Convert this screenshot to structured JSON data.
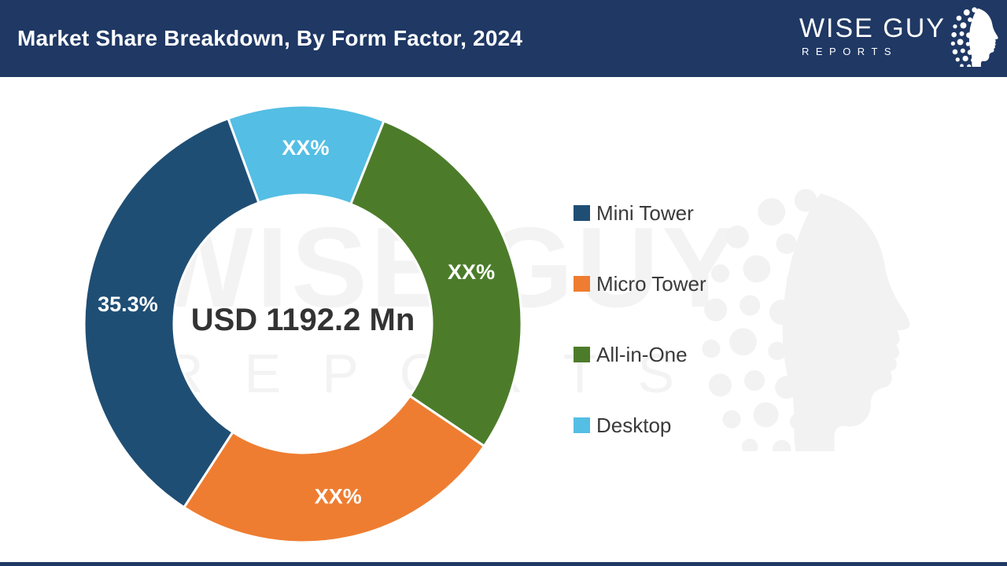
{
  "header": {
    "title": "Market Share Breakdown, By Form Factor, 2024",
    "logo": {
      "line1": "WISE GUY",
      "line2": "REPORTS"
    }
  },
  "watermark": {
    "big_text": "WISE GUY",
    "letters_text": "REPORTS"
  },
  "chart_data": {
    "type": "donut",
    "title": "Market Share Breakdown, By Form Factor, 2024",
    "center_label": "USD 1192.2 Mn",
    "legend_position": "right",
    "grid": false,
    "start_angle_deg": -20,
    "outer_radius": 278,
    "inner_radius": 164,
    "label_radius": 224,
    "draw_order": [
      3,
      2,
      1,
      0
    ],
    "segments": [
      {
        "name": "Mini Tower",
        "value_label": "35.3%",
        "percent": 35.3,
        "color": "#1F4E74"
      },
      {
        "name": "Micro Tower",
        "value_label": "XX%",
        "percent": 24.7,
        "color": "#EE7D31"
      },
      {
        "name": "All-in-One",
        "value_label": "XX%",
        "percent": 28.4,
        "color": "#4C7C2A"
      },
      {
        "name": "Desktop",
        "value_label": "XX%",
        "percent": 11.6,
        "color": "#54BEE4"
      }
    ]
  },
  "colors": {
    "header_bg": "#1F3864",
    "footer_bg": "#1F3864",
    "center_text": "#333333",
    "legend_text": "#3A3A3A",
    "watermark": "#F2F2F2",
    "segment_border": "#FFFFFF"
  }
}
